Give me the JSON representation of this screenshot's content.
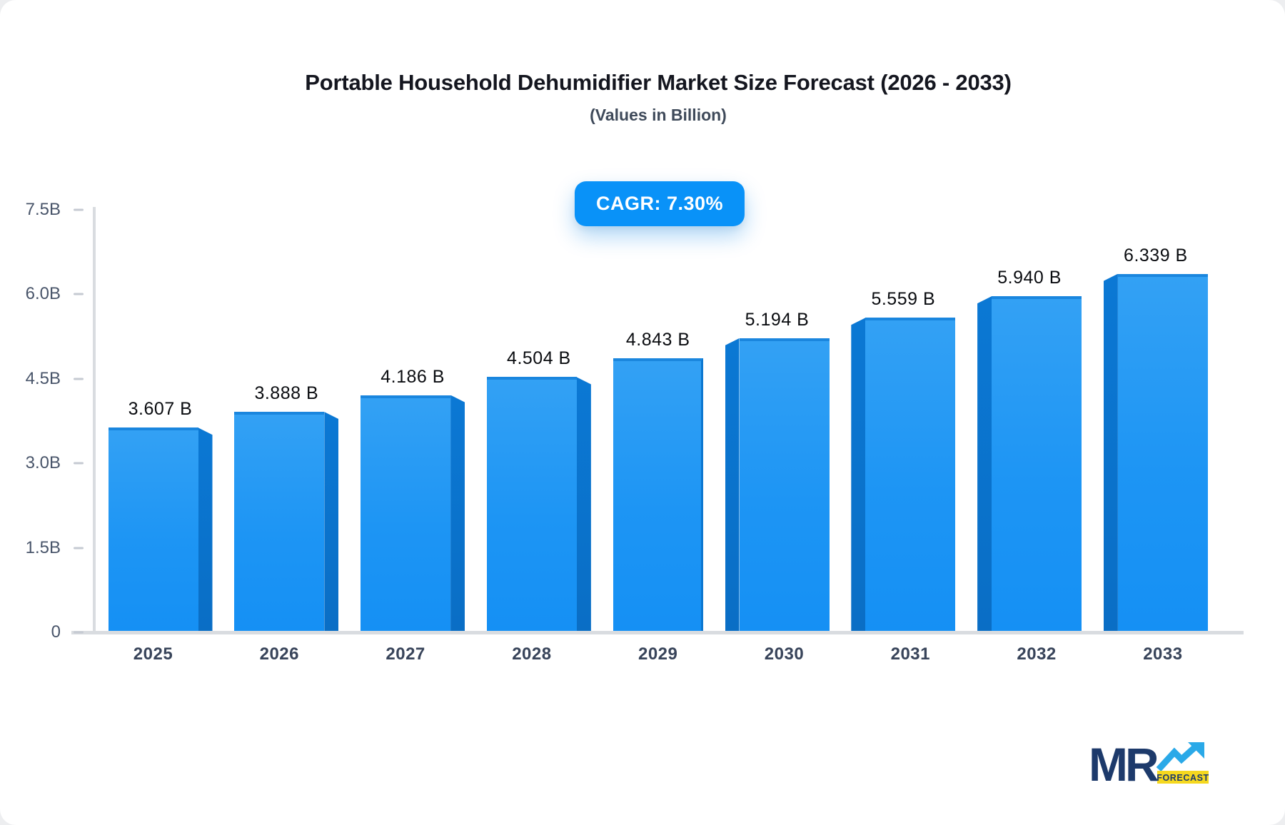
{
  "header": {
    "title": "Portable Household Dehumidifier Market Size Forecast (2026 - 2033)",
    "subtitle": "(Values in Billion)"
  },
  "badge": {
    "label": "CAGR: 7.30%"
  },
  "chart_data": {
    "type": "bar",
    "title": "Portable Household Dehumidifier Market Size Forecast (2026 - 2033)",
    "subtitle": "(Values in Billion)",
    "annotation": "CAGR: 7.30%",
    "categories": [
      "2025",
      "2026",
      "2027",
      "2028",
      "2029",
      "2030",
      "2031",
      "2032",
      "2033"
    ],
    "values": [
      3.607,
      3.888,
      4.186,
      4.504,
      4.843,
      5.194,
      5.559,
      5.94,
      6.339
    ],
    "value_labels": [
      "3.607 B",
      "3.888 B",
      "4.186 B",
      "4.504 B",
      "4.843 B",
      "5.194 B",
      "5.559 B",
      "5.940 B",
      "6.339 B"
    ],
    "ylabel": "",
    "xlabel": "",
    "ylim": [
      0,
      7.5
    ],
    "yticks": [
      {
        "value": 0,
        "label": "0"
      },
      {
        "value": 1.5,
        "label": "1.5B"
      },
      {
        "value": 3.0,
        "label": "3.0B"
      },
      {
        "value": 4.5,
        "label": "4.5B"
      },
      {
        "value": 6.0,
        "label": "6.0B"
      },
      {
        "value": 7.5,
        "label": "7.5B"
      }
    ],
    "grid": false,
    "legend": false,
    "style_3d": true,
    "bar_colors": {
      "face_top": "#33a1f4",
      "face_bottom": "#1590f4",
      "face_top_edge": "#1a86de",
      "side": "#0973ce"
    }
  },
  "logo": {
    "text": "MR",
    "sub_label": "FORECAST",
    "navy": "#1d3a6b",
    "blue": "#2aa9e8",
    "yellow": "#f5d81f"
  },
  "colors": {
    "badge_bg": "#0992f8",
    "axis": "#d9dce0",
    "card_bg": "#ffffff"
  }
}
